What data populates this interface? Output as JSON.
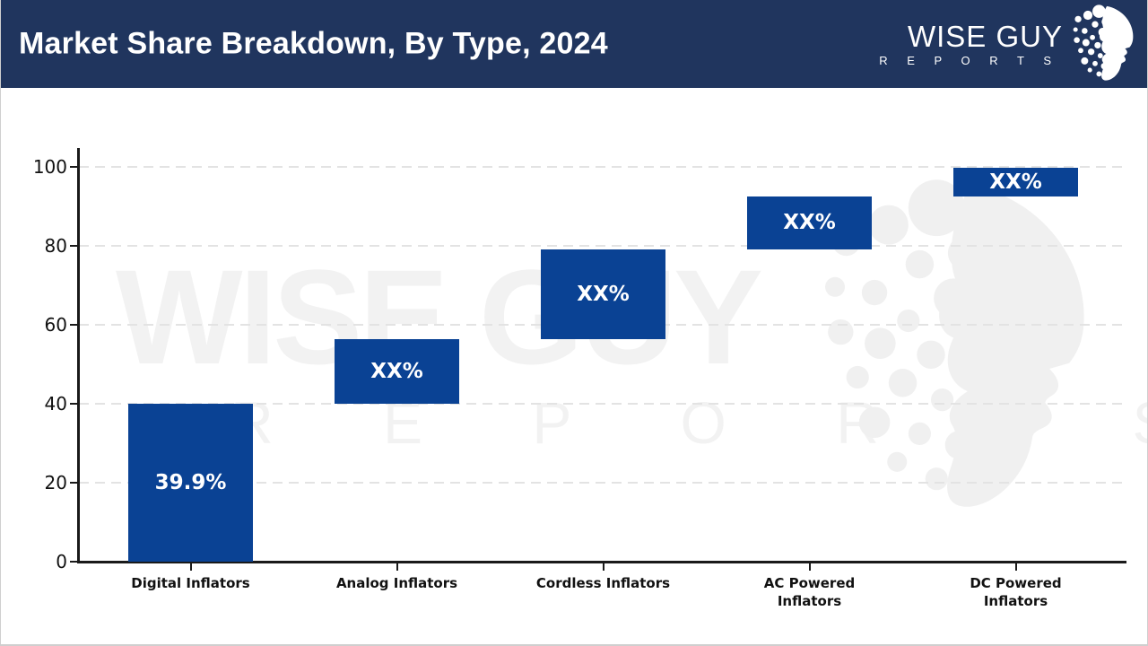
{
  "header": {
    "title": "Market Share Breakdown, By Type, 2024",
    "bg_color": "#20355e",
    "logo": {
      "line1": "WISE GUY",
      "line2": "R E P O R T S"
    }
  },
  "watermark": {
    "line1": "WISE GUY",
    "line2": "R E P O R T S"
  },
  "chart_data": {
    "type": "bar",
    "subtype": "waterfall",
    "title": "Market Share Breakdown, By Type, 2024",
    "categories": [
      "Digital Inflators",
      "Analog Inflators",
      "Cordless Inflators",
      "AC Powered Inflators",
      "DC Powered Inflators"
    ],
    "display_categories": [
      "Digital Inflators",
      "Analog Inflators",
      "Cordless Inflators",
      "AC Powered\nInflators",
      "DC Powered\nInflators"
    ],
    "segments": [
      {
        "category": "Digital Inflators",
        "start": 0,
        "end": 39.9,
        "label": "39.9%"
      },
      {
        "category": "Analog Inflators",
        "start": 40,
        "end": 56.4,
        "label": "XX%"
      },
      {
        "category": "Cordless Inflators",
        "start": 56.4,
        "end": 79.2,
        "label": "XX%"
      },
      {
        "category": "AC Powered Inflators",
        "start": 79.2,
        "end": 92.6,
        "label": "XX%"
      },
      {
        "category": "DC Powered Inflators",
        "start": 92.6,
        "end": 99.8,
        "label": "XX%"
      }
    ],
    "yticks": [
      0,
      20,
      40,
      60,
      80,
      100
    ],
    "ylim": [
      0,
      105
    ],
    "xlabel": "",
    "ylabel": "",
    "grid": "horizontal-dashed",
    "legend": "none",
    "bar_color": "#0a4294",
    "bar_label_color": "#ffffff",
    "axis_color": "#1a1a1a",
    "gridline_color": "#e3e3e3"
  }
}
